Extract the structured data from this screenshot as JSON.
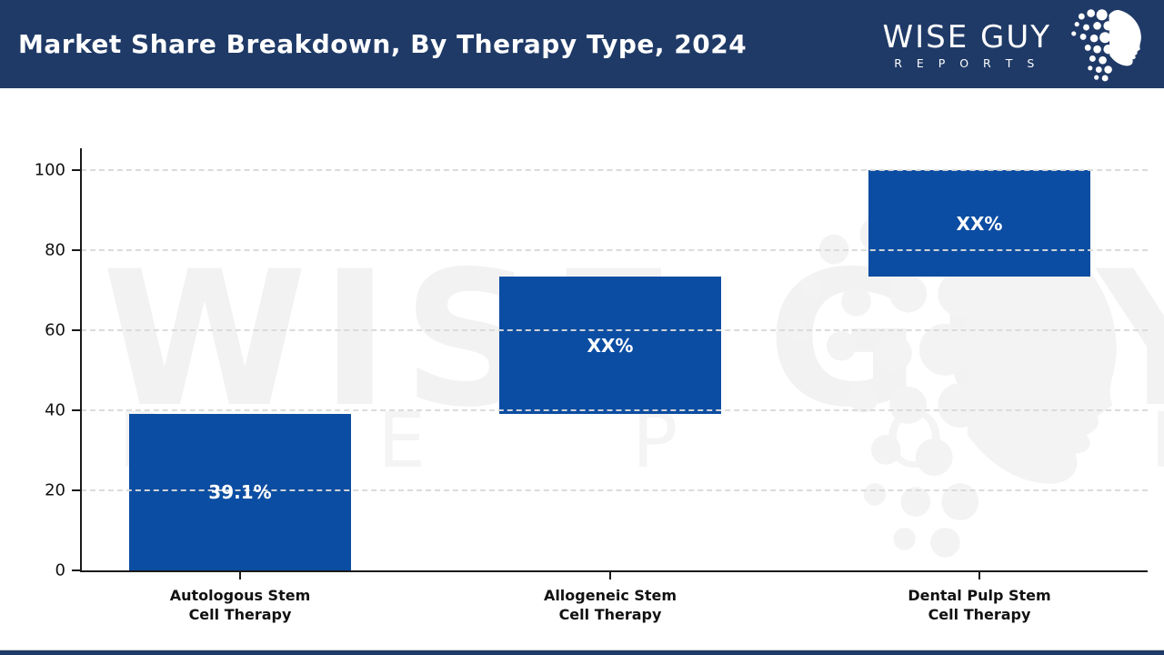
{
  "header": {
    "title": "Market Share Breakdown, By Therapy Type, 2024",
    "logo": {
      "line1": "WISE GUY",
      "line2": "R E P O R T S"
    }
  },
  "watermark": {
    "line1": "WISE GUY",
    "line2": "R E P O R T S"
  },
  "chart_data": {
    "type": "bar",
    "subtype": "waterfall-stacked-percentage",
    "title": "Market Share Breakdown, By Therapy Type, 2024",
    "categories": [
      "Autologous Stem\nCell Therapy",
      "Allogeneic Stem\nCell Therapy",
      "Dental Pulp Stem\nCell Therapy"
    ],
    "bars": [
      {
        "start": 0,
        "end": 39.1,
        "label": "39.1%"
      },
      {
        "start": 39.1,
        "end": 73.4,
        "label": "XX%"
      },
      {
        "start": 73.4,
        "end": 100,
        "label": "XX%"
      }
    ],
    "yticks": [
      0,
      20,
      40,
      60,
      80,
      100
    ],
    "ylim": [
      0,
      100
    ],
    "grid": "horizontal-dashed",
    "legend": "none",
    "bar_color": "#0b4da2",
    "bar_label_color": "#ffffff"
  },
  "colors": {
    "header_bg": "#1f3a67",
    "footer_bg": "#1f3a67",
    "bar": "#0b4da2",
    "axis": "#1a1a1a",
    "grid": "#d9d9d9",
    "watermark": "#f2f2f2"
  }
}
